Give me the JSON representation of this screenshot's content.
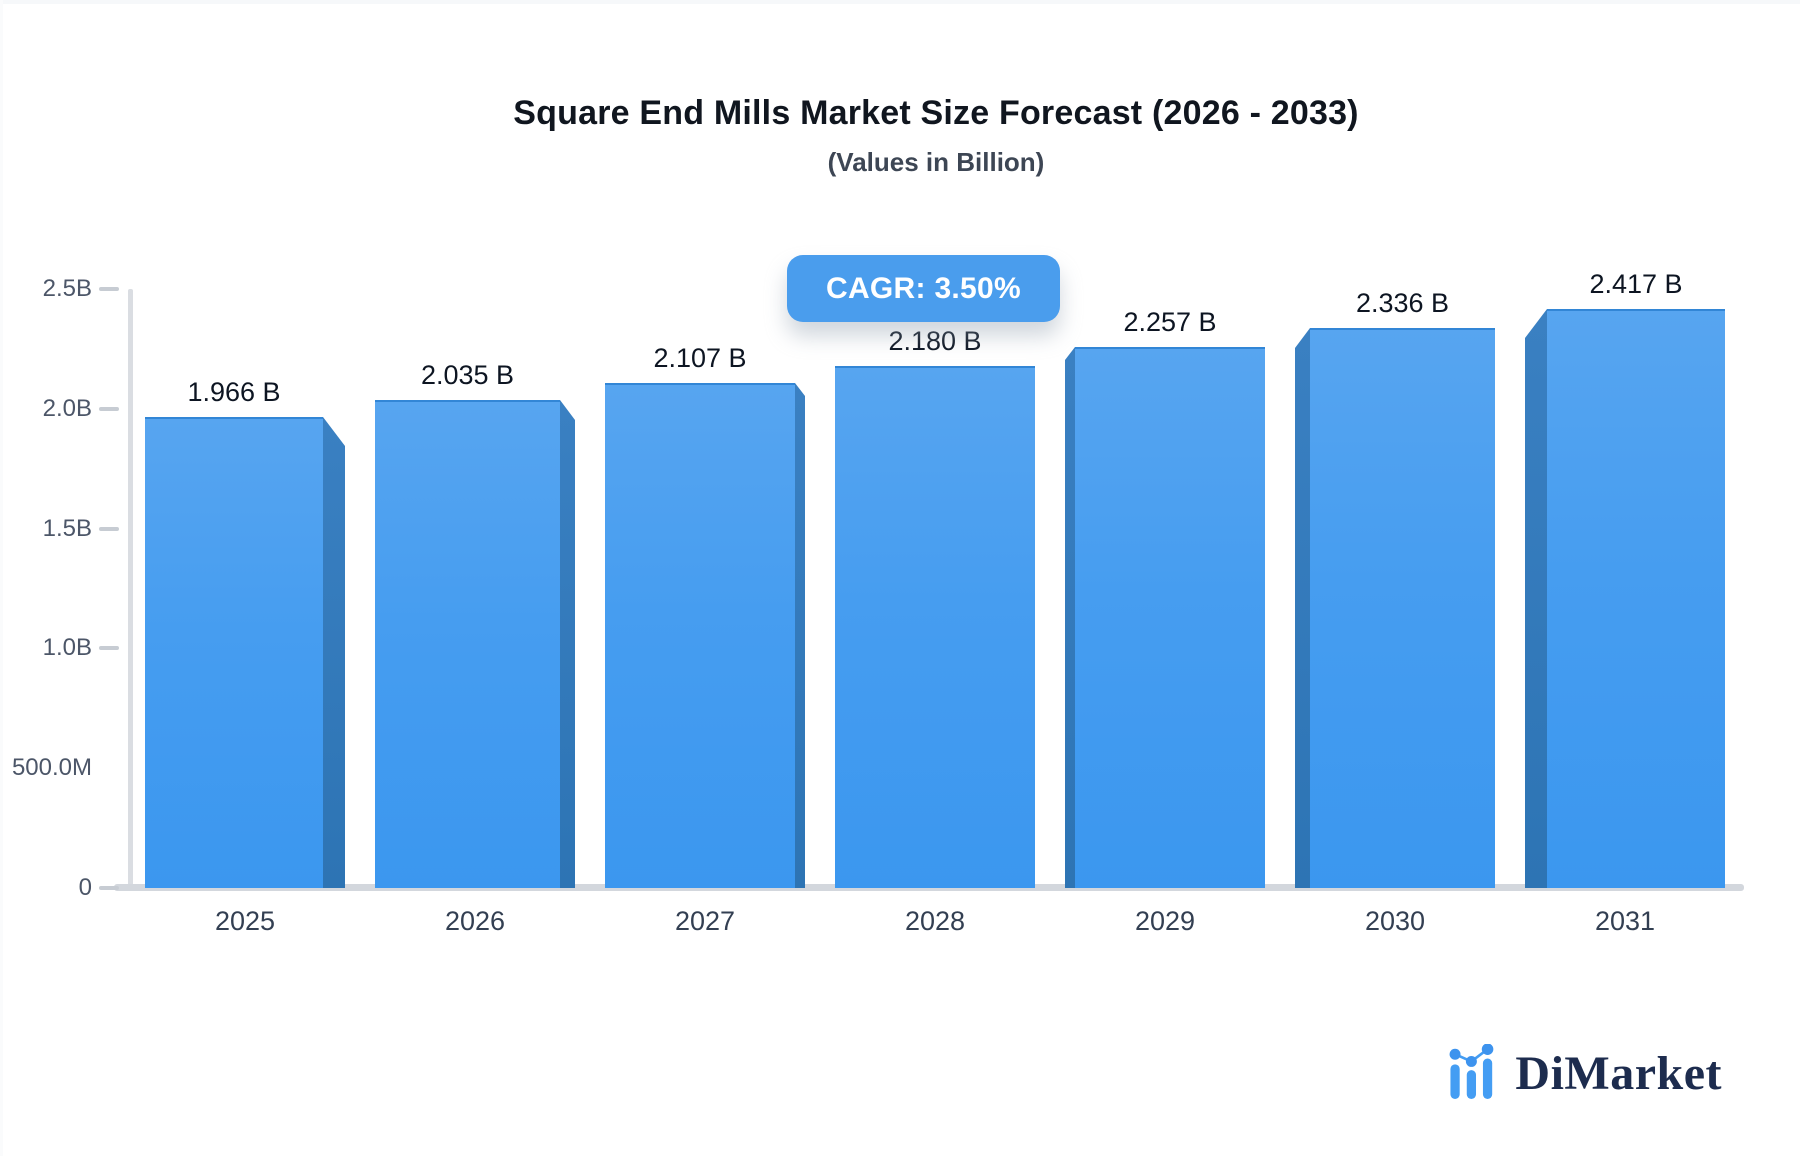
{
  "header": {
    "title": "Square End Mills Market Size Forecast (2026 - 2033)",
    "subtitle": "(Values in Billion)"
  },
  "badge": {
    "label": "CAGR: 3.50%",
    "color": "#4a9ded"
  },
  "chart_data": {
    "type": "bar",
    "title": "Square End Mills Market Size Forecast (2026 - 2033)",
    "subtitle": "(Values in Billion)",
    "categories": [
      "2025",
      "2026",
      "2027",
      "2028",
      "2029",
      "2030",
      "2031"
    ],
    "values": [
      1.966,
      2.035,
      2.107,
      2.18,
      2.257,
      2.336,
      2.417
    ],
    "value_labels": [
      "1.966 B",
      "2.035 B",
      "2.107 B",
      "2.180 B",
      "2.257 B",
      "2.336 B",
      "2.417 B"
    ],
    "xlabel": "",
    "ylabel": "",
    "ylim": [
      0,
      2.5
    ],
    "grid": false,
    "legend": null,
    "y_ticks": [
      {
        "value": 0,
        "label": "0",
        "dash": true
      },
      {
        "value": 0.5,
        "label": "500.0M",
        "dash": false
      },
      {
        "value": 1.0,
        "label": "1.0B",
        "dash": true
      },
      {
        "value": 1.5,
        "label": "1.5B",
        "dash": true
      },
      {
        "value": 2.0,
        "label": "2.0B",
        "dash": true
      },
      {
        "value": 2.5,
        "label": "2.5B",
        "dash": true
      }
    ],
    "colors": {
      "bar_top": "#57a5f0",
      "bar_bottom": "#3b97ef",
      "bar_side": "#2d74b4",
      "axis": "#d3d7dd",
      "tick_text": "#4c5668"
    }
  },
  "logo": {
    "text": "DiMarket",
    "icon": "bar-chart-logo-icon",
    "text_color": "#1d2c4e",
    "accent_color": "#449df3"
  }
}
